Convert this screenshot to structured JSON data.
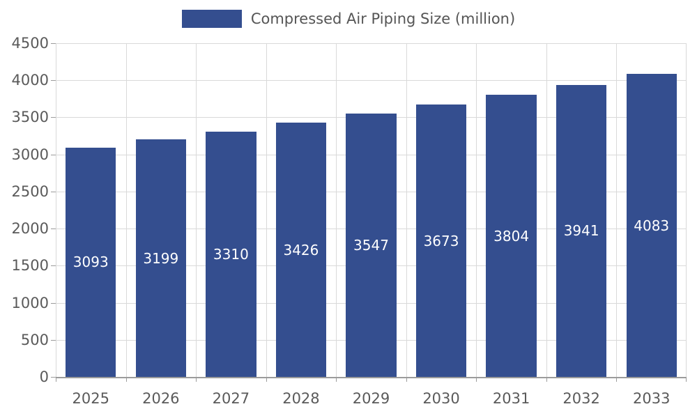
{
  "chart_data": {
    "type": "bar",
    "title": "Compressed Air Piping Size (million)",
    "categories": [
      "2025",
      "2026",
      "2027",
      "2028",
      "2029",
      "2030",
      "2031",
      "2032",
      "2033"
    ],
    "values": [
      3093,
      3199,
      3310,
      3426,
      3547,
      3673,
      3804,
      3941,
      4083
    ],
    "xlabel": "",
    "ylabel": "",
    "ylim": [
      0,
      4500
    ],
    "ytick_step": 500,
    "ytick_labels": [
      "0",
      "500",
      "1000",
      "1500",
      "2000",
      "2500",
      "3000",
      "3500",
      "4000",
      "4500"
    ],
    "grid": true,
    "legend_position": "top",
    "value_labels_inside_bars": true,
    "colors": {
      "bar": "#344e8f",
      "bar_value_label": "#ffffff",
      "axis_text": "#5a5a5a",
      "legend_text": "#555555",
      "grid_line": "#d9d9d9",
      "axis_line": "#9b9b9b",
      "background": "#ffffff"
    }
  }
}
